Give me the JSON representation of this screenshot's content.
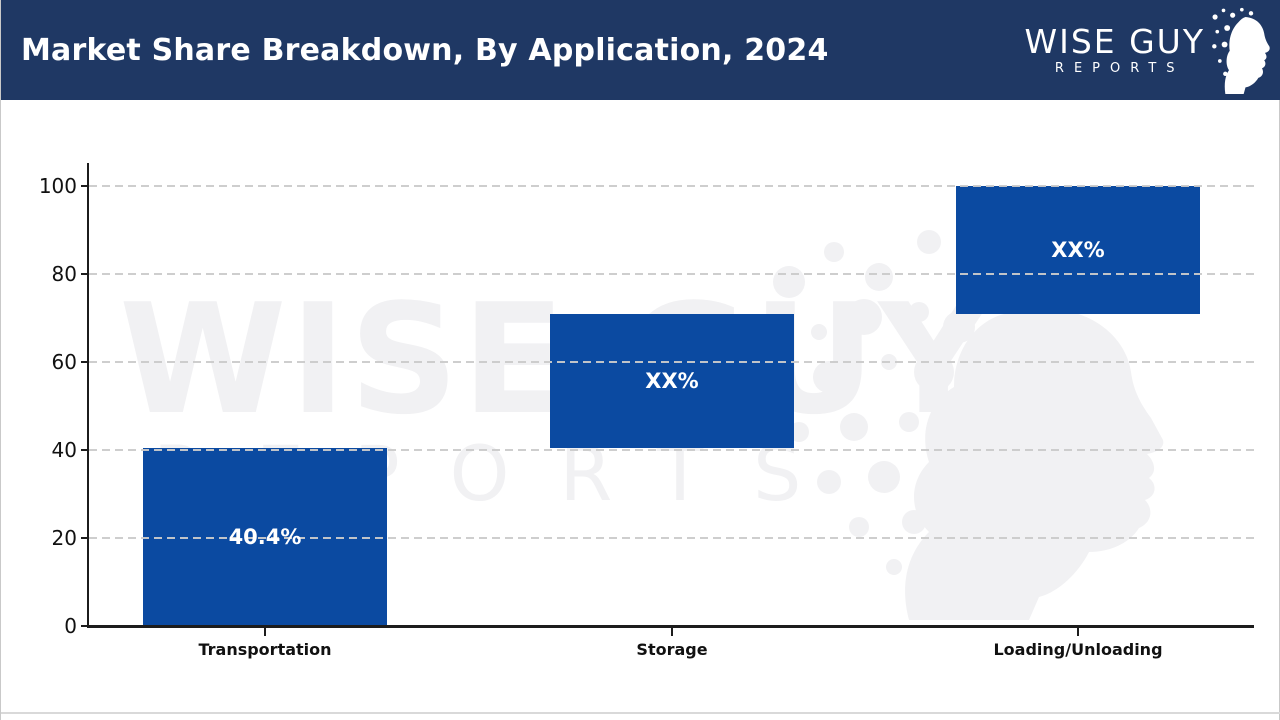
{
  "header": {
    "title": "Market Share Breakdown, By Application, 2024",
    "logo": {
      "line1": "WISE GUY",
      "line2": "REPORTS"
    },
    "bg_color": "#1f3864"
  },
  "watermark": {
    "line1": "WISE GUY",
    "line2": "REPORTS"
  },
  "chart_data": {
    "type": "bar",
    "subtype": "floating-segment-waterfall",
    "title": "Market Share Breakdown, By Application, 2024",
    "categories": [
      "Transportation",
      "Storage",
      "Loading/Unloading"
    ],
    "segments": [
      {
        "category": "Transportation",
        "start": 0,
        "end": 40.4,
        "label": "40.4%"
      },
      {
        "category": "Storage",
        "start": 40.4,
        "end": 71,
        "label": "XX%"
      },
      {
        "category": "Loading/Unloading",
        "start": 71,
        "end": 100,
        "label": "XX%"
      }
    ],
    "y_ticks": [
      0,
      20,
      40,
      60,
      80,
      100
    ],
    "ylim": [
      0,
      105
    ],
    "xlabel": "",
    "ylabel": "",
    "grid": "horizontal-dashed",
    "legend": "none",
    "bar_color": "#0b4aa1",
    "bar_label_color": "#ffffff",
    "grid_color": "#cbcbcb",
    "axis_color": "#1c1c1c",
    "watermark_color": "#f1f1f3"
  }
}
